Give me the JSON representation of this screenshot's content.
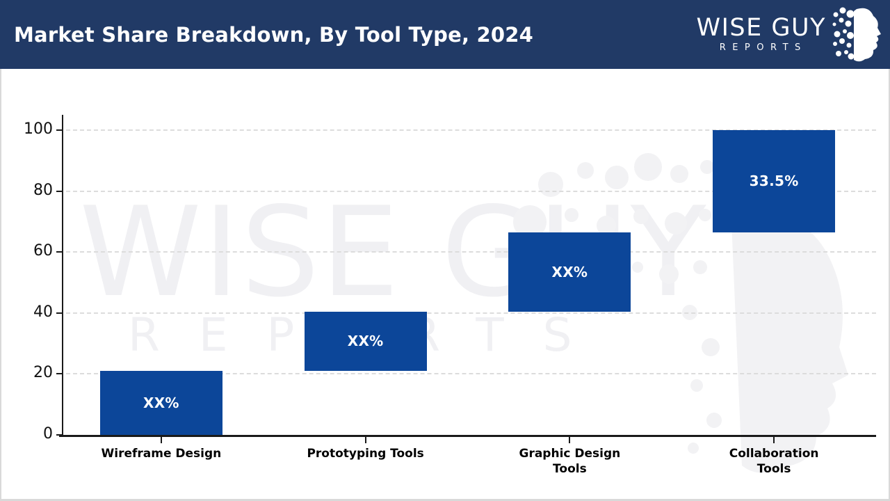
{
  "header": {
    "title": "Market Share Breakdown, By Tool Type, 2024",
    "logo": {
      "line1": "WISE GUY",
      "line2": "REPORTS"
    }
  },
  "watermark": {
    "line1": "WISE GUY",
    "line2": "REPORTS"
  },
  "colors": {
    "header_bg": "#213a66",
    "bar_fill": "#0c4699",
    "bar_label": "#ffffff",
    "gridline": "#dcdcdc",
    "axis": "#1a1a1a",
    "watermark": "#f0f0f3"
  },
  "chart_data": {
    "type": "bar",
    "subtype": "waterfall",
    "title": "Market Share Breakdown, By Tool Type, 2024",
    "xlabel": "",
    "ylabel": "",
    "ylim": [
      0,
      104
    ],
    "yticks": [
      0,
      20,
      40,
      60,
      80,
      100
    ],
    "grid": "horizontal-dashed",
    "legend": "none",
    "categories": [
      "Wireframe Design",
      "Prototyping Tools",
      "Graphic Design\nTools",
      "Collaboration\nTools"
    ],
    "segments": [
      {
        "category": "Wireframe Design",
        "from": 0,
        "to": 21,
        "value_label": "XX%"
      },
      {
        "category": "Prototyping Tools",
        "from": 21,
        "to": 40.5,
        "value_label": "XX%"
      },
      {
        "category": "Graphic Design\nTools",
        "from": 40.5,
        "to": 66.5,
        "value_label": "XX%"
      },
      {
        "category": "Collaboration\nTools",
        "from": 66.5,
        "to": 100,
        "value_label": "33.5%"
      }
    ]
  }
}
